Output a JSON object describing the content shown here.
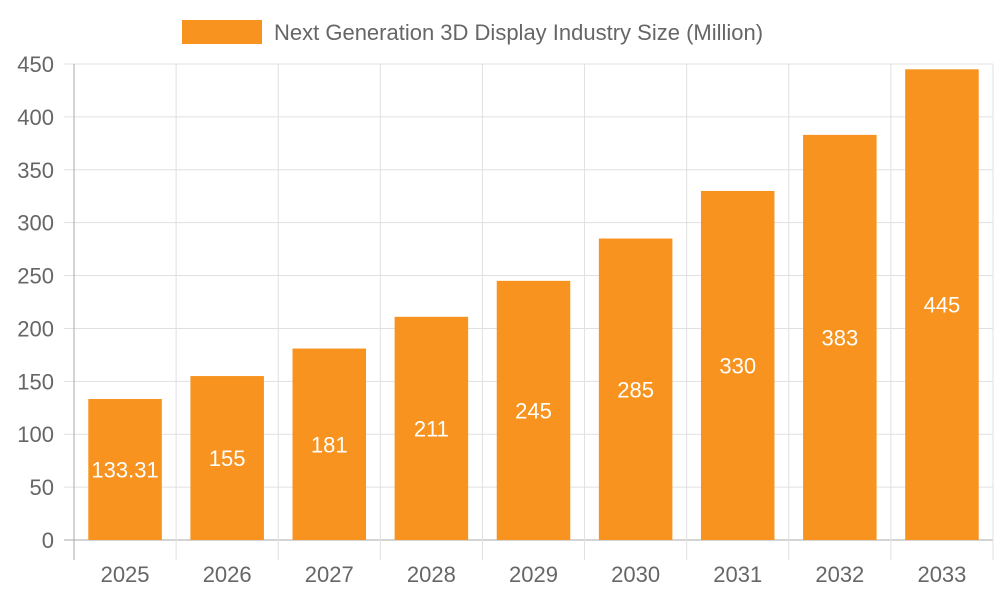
{
  "chart_data": {
    "type": "bar",
    "title": "",
    "xlabel": "",
    "ylabel": "",
    "categories": [
      "2025",
      "2026",
      "2027",
      "2028",
      "2029",
      "2030",
      "2031",
      "2032",
      "2033"
    ],
    "series": [
      {
        "name": "Next Generation 3D Display Industry Size (Million)",
        "values": [
          133.31,
          155,
          181,
          211,
          245,
          285,
          330,
          383,
          445
        ],
        "color": "#F7931E"
      }
    ],
    "data_labels": [
      "133.31",
      "155",
      "181",
      "211",
      "245",
      "285",
      "330",
      "383",
      "445"
    ],
    "ylim": [
      0,
      450
    ],
    "yticks": [
      0,
      50,
      100,
      150,
      200,
      250,
      300,
      350,
      400,
      450
    ],
    "grid": true,
    "legend_position": "top"
  }
}
